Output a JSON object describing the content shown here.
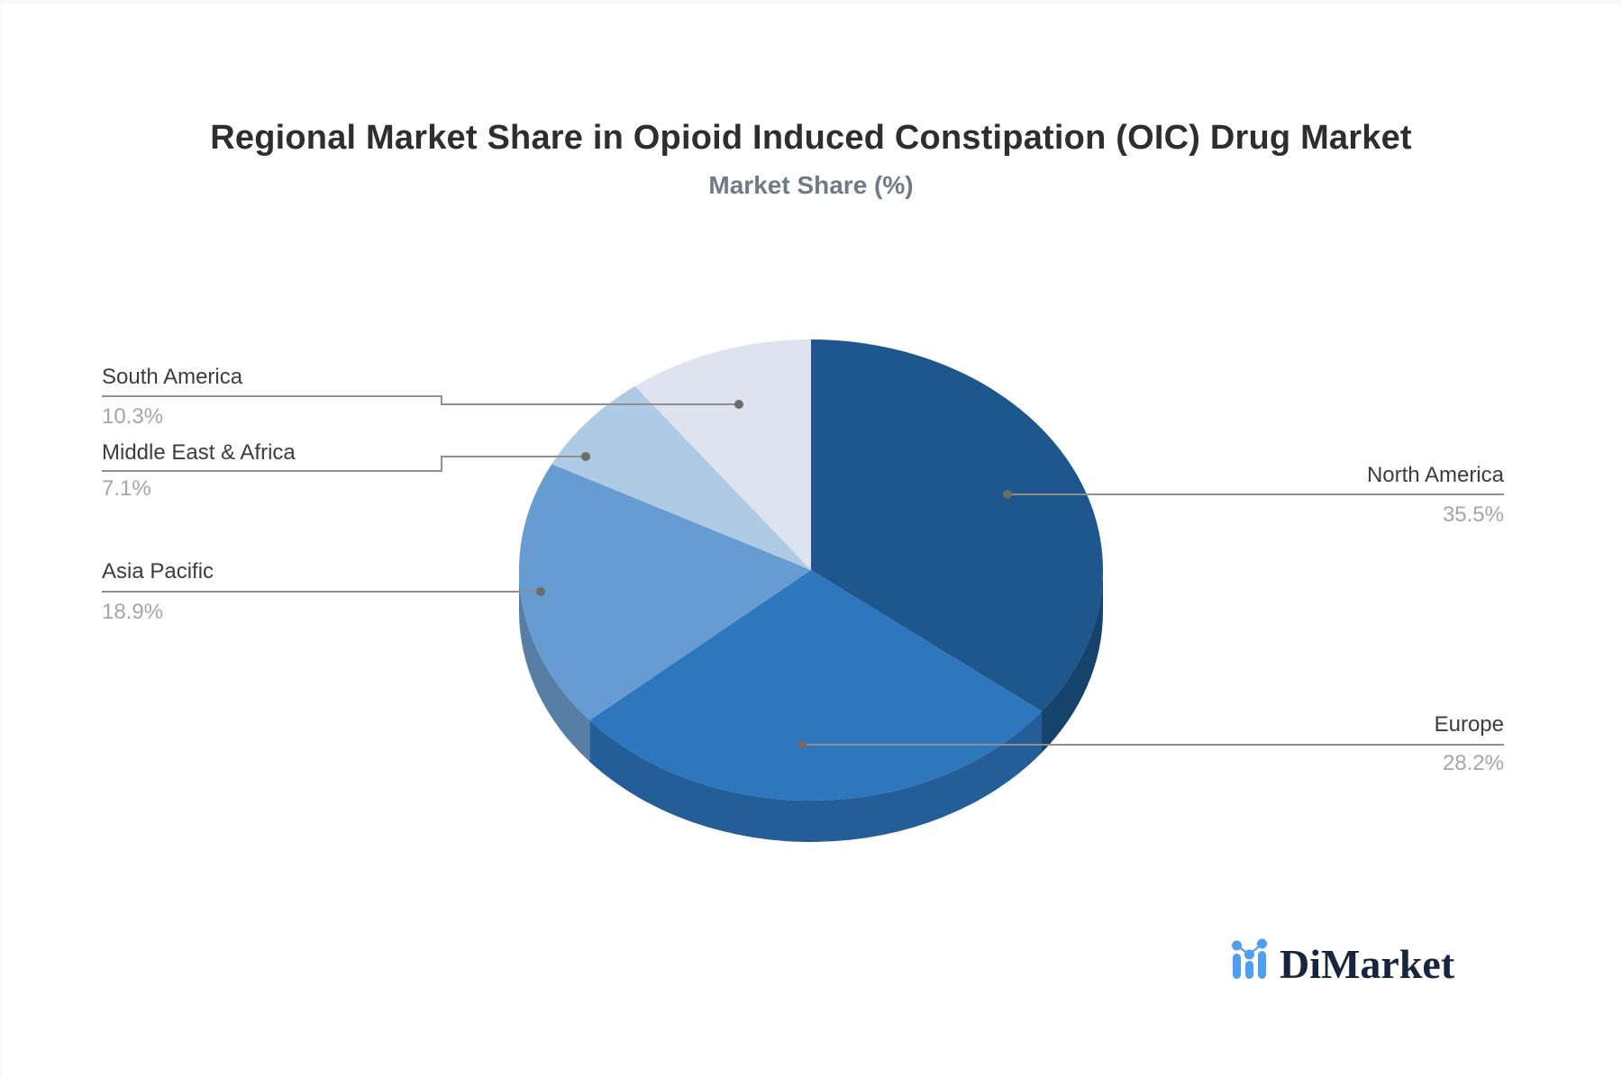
{
  "chart_data": {
    "type": "pie",
    "title": "Regional Market Share in Opioid Induced Constipation (OIC) Drug Market",
    "subtitle": "Market Share (%)",
    "unit": "%",
    "style": "3d-pie",
    "start_angle": "12-o'clock",
    "direction": "clockwise",
    "legend_position": "callout-labels",
    "slices": [
      {
        "label": "North America",
        "value": 35.5,
        "display": "35.5%",
        "color": "#1d578d",
        "side_color": "#16436c"
      },
      {
        "label": "Europe",
        "value": 28.2,
        "display": "28.2%",
        "color": "#2e76bd",
        "side_color": "#245e98"
      },
      {
        "label": "Asia Pacific",
        "value": 18.9,
        "display": "18.9%",
        "color": "#669cd2",
        "side_color": "#577fa6"
      },
      {
        "label": "Middle East & Africa",
        "value": 7.1,
        "display": "7.1%",
        "color": "#aecae5",
        "side_color": "#8ba7c4"
      },
      {
        "label": "South America",
        "value": 10.3,
        "display": "10.3%",
        "color": "#dde4ef",
        "side_color": "#b8c4d6"
      }
    ]
  },
  "branding": {
    "logo_text": "DiMarket",
    "logo_icon": "bar-chart-trend-icon"
  },
  "colors": {
    "leader_line": "#8f8f8f",
    "leader_dot": "#6b6b6b",
    "label_name": "#3d3d3d",
    "label_percent": "#a6a6a6",
    "title_text": "#2e2e2e",
    "subtitle_text": "#6e7b87",
    "logo_blue": "#4f9ef1",
    "logo_navy": "#17253f",
    "background": "#ffffff"
  }
}
